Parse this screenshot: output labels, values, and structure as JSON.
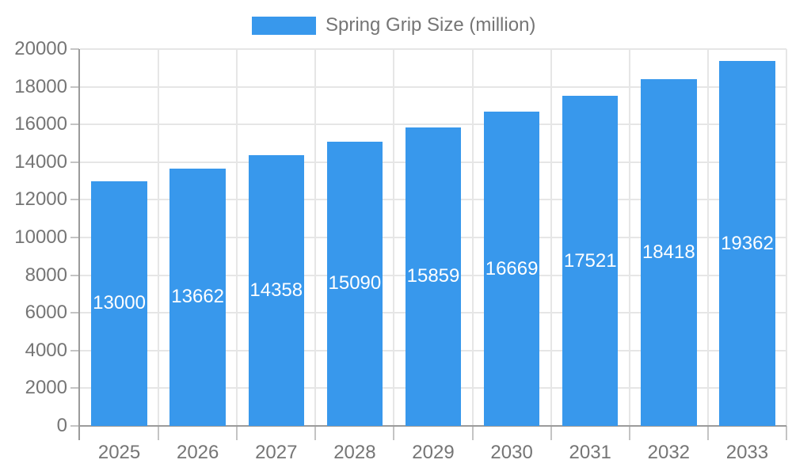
{
  "legend": {
    "label": "Spring Grip Size (million)"
  },
  "colors": {
    "bar": "#3898EC",
    "bar_label_text": "#FFFFFF",
    "axis_line": "#9B9B9B",
    "grid_line": "#E6E6E6",
    "tick": "#C4C4C4",
    "label_text": "#757575",
    "background": "#FFFFFF"
  },
  "chart_data": {
    "type": "bar",
    "title": "",
    "xlabel": "",
    "ylabel": "",
    "categories": [
      "2025",
      "2026",
      "2027",
      "2028",
      "2029",
      "2030",
      "2031",
      "2032",
      "2033"
    ],
    "values": [
      13000,
      13662,
      14358,
      15090,
      15859,
      16669,
      17521,
      18418,
      19362
    ],
    "series_name": "Spring Grip Size (million)",
    "ylim": [
      0,
      20000
    ],
    "yticks": [
      0,
      2000,
      4000,
      6000,
      8000,
      10000,
      12000,
      14000,
      16000,
      18000,
      20000
    ],
    "grid": true,
    "legend_position": "top",
    "bar_labels_inside": true
  }
}
